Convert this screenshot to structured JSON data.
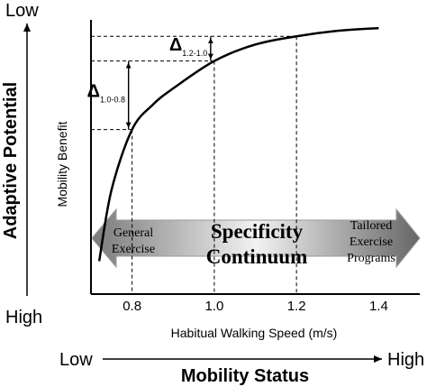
{
  "adaptive_axis": {
    "top_label": "Low",
    "title": "Adaptive Potential",
    "bottom_label": "High"
  },
  "mobility_axis": {
    "left_label": "Low",
    "right_label": "High",
    "title": "Mobility Status"
  },
  "chart_data": {
    "type": "line",
    "xlabel": "Habitual Walking Speed (m/s)",
    "ylabel": "Mobility Benefit",
    "xlim": [
      0.7,
      1.5
    ],
    "ylim": [
      0,
      1
    ],
    "x_ticks": [
      "0.8",
      "1.0",
      "1.2",
      "1.4"
    ],
    "y_ticks": [],
    "grid": false,
    "curve": {
      "x": [
        0.72,
        0.75,
        0.8,
        0.85,
        0.9,
        1.0,
        1.1,
        1.2,
        1.3,
        1.4
      ],
      "y": [
        0.12,
        0.38,
        0.6,
        0.69,
        0.75,
        0.85,
        0.91,
        0.94,
        0.96,
        0.97
      ]
    },
    "reference_speeds": [
      0.8,
      1.0,
      1.2
    ],
    "deltas": [
      {
        "symbol": "Δ",
        "subscript": "1.0-0.8",
        "from_x": 0.8,
        "to_x": 1.0
      },
      {
        "symbol": "Δ",
        "subscript": "1.2-1.0",
        "from_x": 1.0,
        "to_x": 1.2
      }
    ],
    "continuum_arrow": {
      "direction": "bidirectional",
      "left_label": [
        "General",
        "Exercise"
      ],
      "center_label": [
        "Specificity",
        "Continuum"
      ],
      "right_label": [
        "Tailored",
        "Exercise",
        "Programs"
      ]
    }
  },
  "colors": {
    "ink": "#000000",
    "arrow_dark": "#6e6e6e",
    "arrow_light": "#ededed"
  }
}
